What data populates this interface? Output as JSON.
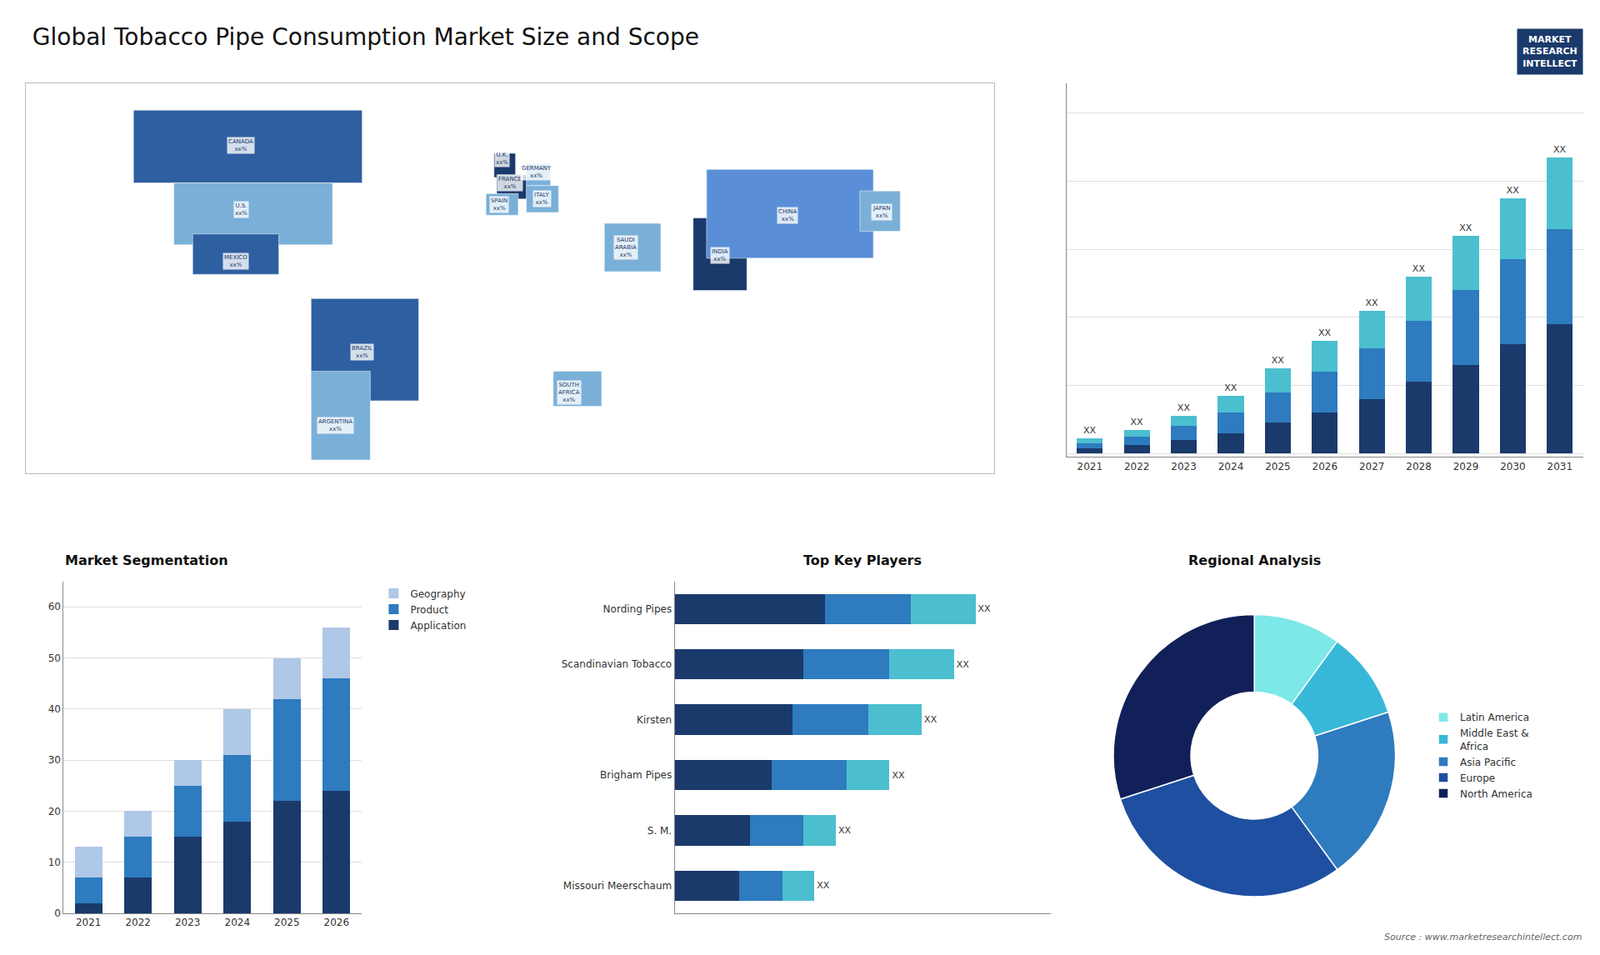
{
  "title": "Global Tobacco Pipe Consumption Market Size and Scope",
  "annotations": [
    "Source : www.marketresearchintellect.com",
    "MARKET\nRESEARCH\nINTELLECT"
  ],
  "chart_data": [
    {
      "type": "map",
      "categories": [
        "CANADA\nxx%",
        "U.S.\nxx%",
        "MEXICO\nxx%",
        "BRAZIL\nxx%",
        "ARGENTINA\nxx%",
        "U.K.\nxx%",
        "FRANCE\nxx%",
        "SPAIN\nxx%",
        "GERMANY\nxx%",
        "ITALY\nxx%",
        "SAUDI\nARABIA\nxx%",
        "SOUTH\nAFRICA\nxx%",
        "INDIA\nxx%",
        "CHINA\nxx%",
        "JAPAN\nxx%"
      ],
      "x": [
        -100,
        -100,
        -102,
        -55,
        -65,
        -3,
        0,
        -4,
        10,
        12,
        43,
        22,
        78,
        103,
        138
      ],
      "y": [
        62,
        38,
        19,
        -15,
        -42,
        57,
        48,
        40,
        52,
        42,
        24,
        -30,
        21,
        36,
        37
      ],
      "regions": [
        [
          -140,
          48,
          -55,
          75
        ],
        [
          -125,
          25,
          -66,
          48
        ],
        [
          -118,
          14,
          -86,
          29
        ],
        [
          -74,
          -33,
          -34,
          5
        ],
        [
          -74,
          -55,
          -52,
          -22
        ],
        [
          -6,
          50,
          2,
          59
        ],
        [
          -5,
          42,
          8,
          51
        ],
        [
          -9,
          36,
          3,
          44
        ],
        [
          6,
          47,
          15,
          55
        ],
        [
          6,
          37,
          18,
          47
        ],
        [
          35,
          15,
          56,
          33
        ],
        [
          16,
          -35,
          34,
          -22
        ],
        [
          68,
          8,
          88,
          35
        ],
        [
          73,
          20,
          135,
          53
        ],
        [
          130,
          30,
          145,
          45
        ]
      ],
      "colors": [
        "#2e5fa0",
        "#7ab0d8",
        "#2e5fa0",
        "#2e5fa0",
        "#7ab0d8",
        "#1a3a6b",
        "#1a3a6b",
        "#7ab0d8",
        "#7ab0d8",
        "#7ab0d8",
        "#7ab0d8",
        "#7ab0d8",
        "#1a3a6b",
        "#5a8fd8",
        "#7ab0d8"
      ],
      "xlim": [
        -180,
        180
      ],
      "ylim": [
        -60,
        85
      ],
      "tick_labels": false,
      "grid": false
    },
    {
      "type": "bar",
      "stacked": true,
      "categories": [
        "2021",
        "2022",
        "2023",
        "2024",
        "2025",
        "2026",
        "2027",
        "2028",
        "2029",
        "2030",
        "2031"
      ],
      "series": [
        {
          "color": "#1a3a6b",
          "values": [
            1.5,
            2.5,
            4,
            6,
            9,
            12,
            16,
            21,
            26,
            32,
            38
          ]
        },
        {
          "color": "#2e7bbf",
          "values": [
            1.5,
            2.5,
            4,
            6,
            9,
            12,
            15,
            18,
            22,
            25,
            28
          ]
        },
        {
          "color": "#4bbfcf",
          "values": [
            1.5,
            2.0,
            3,
            5,
            7,
            9,
            11,
            13,
            16,
            18,
            21
          ]
        }
      ],
      "total_labels": [
        "XX",
        "XX",
        "XX",
        "XX",
        "XX",
        "XX",
        "XX",
        "XX",
        "XX",
        "XX",
        "XX"
      ],
      "ylim": [
        -1,
        108.75
      ],
      "yticks": [
        0,
        20,
        40,
        60,
        80,
        100
      ],
      "grid": true,
      "tick_labels": "x",
      "legend": false
    },
    {
      "type": "bar",
      "title": "Market Segmentation",
      "stacked": true,
      "categories": [
        "2021",
        "2022",
        "2023",
        "2024",
        "2025",
        "2026"
      ],
      "series": [
        {
          "name": "Application",
          "color": "#1a3a6b",
          "values": [
            2,
            7,
            15,
            18,
            22,
            24
          ]
        },
        {
          "name": "Product",
          "color": "#2e7bbf",
          "values": [
            5,
            8,
            10,
            13,
            20,
            22
          ]
        },
        {
          "name": "Geography",
          "color": "#b0c8e8",
          "values": [
            6,
            5,
            5,
            9,
            8,
            10
          ]
        }
      ],
      "ylim": [
        0,
        65
      ],
      "yticks": [
        0,
        10,
        20,
        30,
        40,
        50,
        60
      ],
      "grid": true,
      "legend": "right"
    },
    {
      "type": "bar",
      "title": "Top Key Players",
      "orientation": "horizontal",
      "stacked": true,
      "categories": [
        "Nording Pipes",
        "Scandinavian Tobacco",
        "Kirsten",
        "Brigham Pipes",
        "S. M.",
        "Missouri Meerschaum"
      ],
      "series": [
        {
          "color": "#1a3a6b",
          "values": [
            7,
            6,
            5.5,
            4.5,
            3.5,
            3.0
          ]
        },
        {
          "color": "#2e7bbf",
          "values": [
            4,
            4,
            3.5,
            3.5,
            2.5,
            2.0
          ]
        },
        {
          "color": "#4bbfcf",
          "values": [
            3,
            3,
            2.5,
            2.0,
            1.5,
            1.5
          ]
        }
      ],
      "total_labels": [
        "XX",
        "XX",
        "XX",
        "XX",
        "XX",
        "XX"
      ],
      "xlim": [
        0,
        17.5
      ],
      "tick_labels": "y",
      "grid": false,
      "legend": false
    },
    {
      "type": "donut",
      "title": "Regional Analysis",
      "categories": [
        "Latin America",
        "Middle East &\nAfrica",
        "Asia Pacific",
        "Europe",
        "North America"
      ],
      "values": [
        10,
        10,
        20,
        30,
        30
      ],
      "colors": [
        "#7de8e8",
        "#38b8d8",
        "#2e7bbf",
        "#1e4fa0",
        "#12205a"
      ],
      "legend": "right",
      "data_labels": false
    }
  ]
}
